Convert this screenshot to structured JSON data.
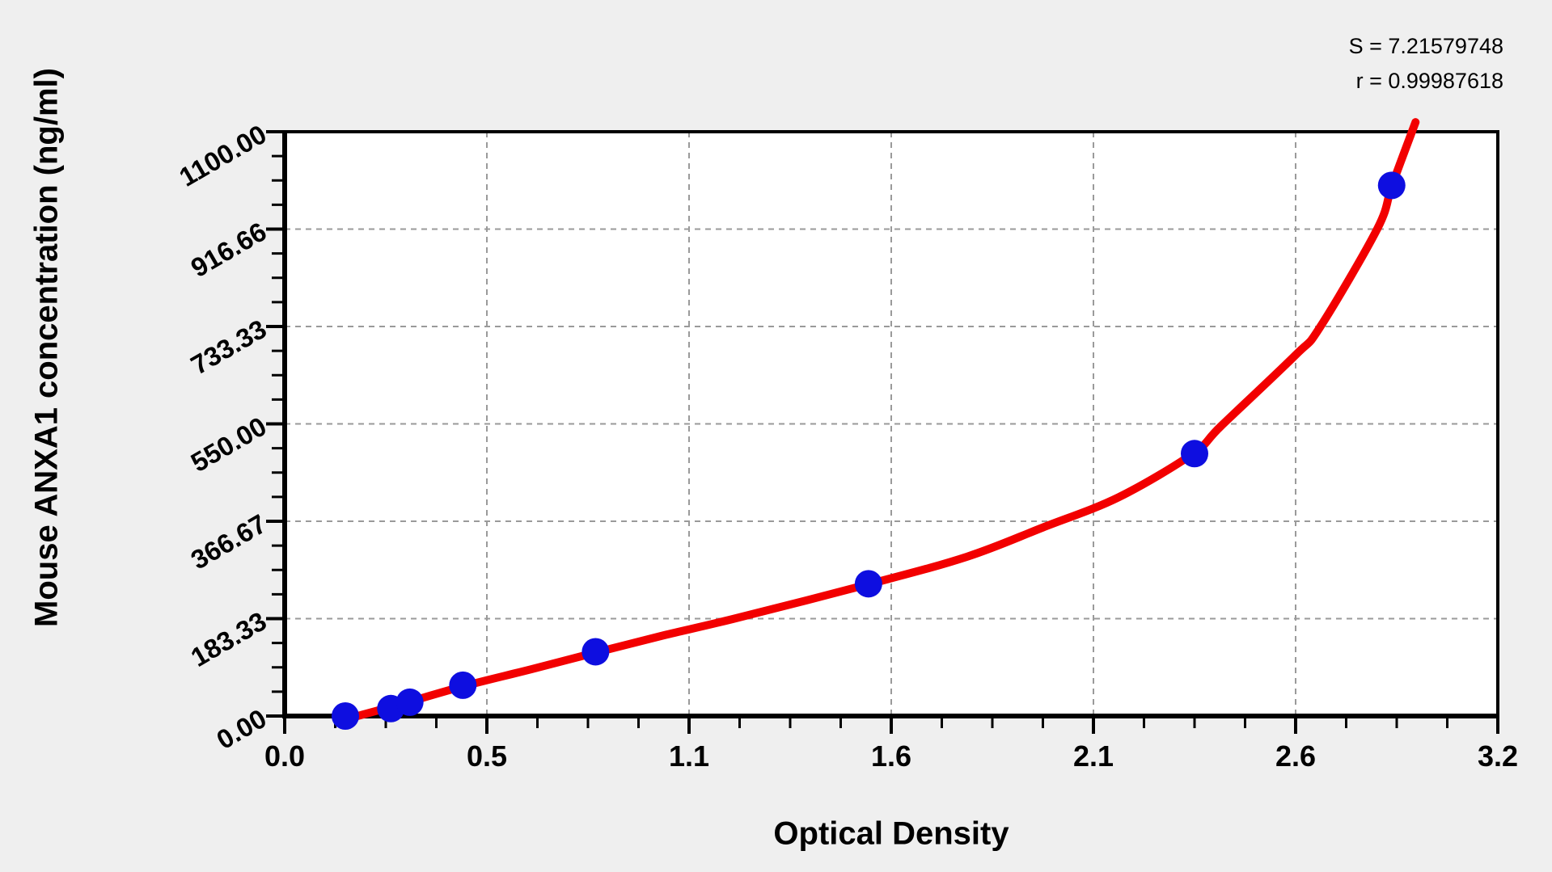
{
  "stats": {
    "s_label": "S = 7.21579748",
    "r_label": "r = 0.99987618"
  },
  "chart_data": {
    "type": "scatter",
    "title": "",
    "xlabel": "Optical Density",
    "ylabel": "Mouse ANXA1 concentration (ng/ml)",
    "xlim": [
      0,
      3.2
    ],
    "ylim": [
      0,
      1100
    ],
    "x_tick_labels": [
      "0.0",
      "0.5",
      "1.1",
      "1.6",
      "2.1",
      "2.6",
      "3.2"
    ],
    "y_tick_labels": [
      "0.00",
      "183.33",
      "366.67",
      "550.00",
      "733.33",
      "916.66",
      "1100.00"
    ],
    "x_major_count": 6,
    "y_major_count": 6,
    "minor_per_major": 4,
    "grid": "dashed-at-majors",
    "legend": "none",
    "colors": {
      "background": "#efefef",
      "plot_background": "#ffffff",
      "axis": "#000000",
      "grid": "#9a9a9a",
      "curve": "#f20000",
      "points": "#0e0ee0"
    },
    "series": [
      {
        "name": "standards",
        "type": "scatter",
        "color": "#0e0ee0",
        "points": [
          [
            0.16,
            0
          ],
          [
            0.28,
            14
          ],
          [
            0.33,
            26
          ],
          [
            0.47,
            58
          ],
          [
            0.82,
            121
          ],
          [
            1.54,
            249
          ],
          [
            2.4,
            494
          ],
          [
            2.92,
            999
          ]
        ]
      },
      {
        "name": "fit-curve",
        "type": "line",
        "color": "#f20000",
        "points": [
          [
            0.166,
            -5
          ],
          [
            0.3,
            21
          ],
          [
            0.471,
            56
          ],
          [
            0.65,
            88
          ],
          [
            0.823,
            120
          ],
          [
            1.0,
            152
          ],
          [
            1.184,
            183
          ],
          [
            1.545,
            249
          ],
          [
            1.8,
            300
          ],
          [
            2.0,
            355
          ],
          [
            2.2,
            412
          ],
          [
            2.396,
            494
          ],
          [
            2.47,
            546
          ],
          [
            2.667,
            680
          ],
          [
            2.731,
            732
          ],
          [
            2.882,
            917
          ],
          [
            2.921,
            999
          ],
          [
            2.983,
            1118
          ]
        ]
      }
    ]
  }
}
